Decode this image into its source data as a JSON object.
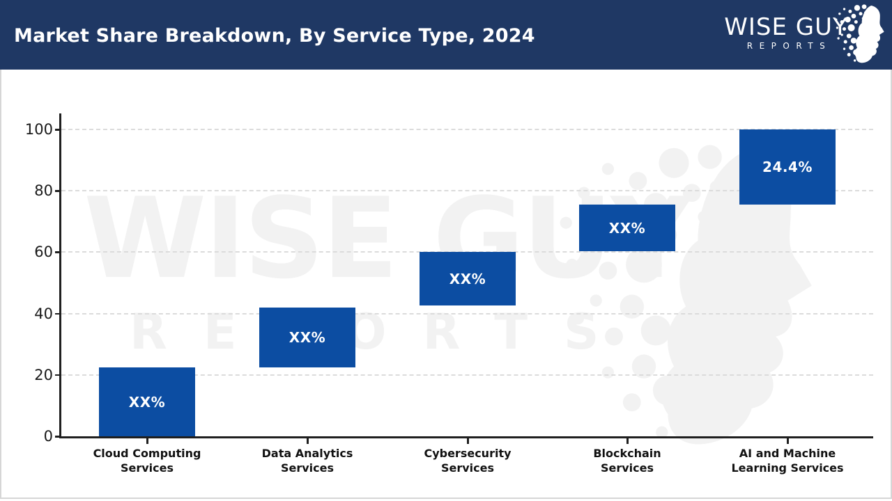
{
  "header": {
    "title": "Market Share Breakdown, By Service Type, 2024",
    "logo": {
      "line1": "WISE GUY",
      "line2": "REPORTS"
    }
  },
  "watermark": {
    "line1": "WISE GUY",
    "line2": "REPORTS"
  },
  "icons": {
    "logo_head": "dotted-face-profile-icon",
    "watermark_head": "dotted-face-profile-icon"
  },
  "colors": {
    "header_bg": "#1F3864",
    "bar": "#0C4DA2",
    "grid": "#DBDBDB",
    "axis": "#1F1F1F",
    "watermark": "#F2F2F2",
    "bar_label": "#FFFFFF",
    "category_label": "#111111"
  },
  "chart_data": {
    "type": "bar",
    "subtype": "floating-waterfall",
    "title": "Market Share Breakdown, By Service Type, 2024",
    "xlabel": "",
    "ylabel": "",
    "ylim": [
      0,
      105
    ],
    "yticks": [
      0,
      20,
      40,
      60,
      80,
      100
    ],
    "grid": "horizontal-dashed",
    "legend": "none",
    "categories": [
      "Cloud Computing\nServices",
      "Data Analytics\nServices",
      "Cybersecurity\nServices",
      "Blockchain\nServices",
      "AI and Machine\nLearning Services"
    ],
    "bars": [
      {
        "category": "Cloud Computing\nServices",
        "start": 0,
        "end": 22.4,
        "label": "XX%"
      },
      {
        "category": "Data Analytics\nServices",
        "start": 22.4,
        "end": 42,
        "label": "XX%"
      },
      {
        "category": "Cybersecurity\nServices",
        "start": 42.6,
        "end": 60,
        "label": "XX%"
      },
      {
        "category": "Blockchain\nServices",
        "start": 60.3,
        "end": 75.4,
        "label": "XX%"
      },
      {
        "category": "AI and Machine\nLearning Services",
        "start": 75.6,
        "end": 100,
        "label": "24.4%"
      }
    ]
  }
}
